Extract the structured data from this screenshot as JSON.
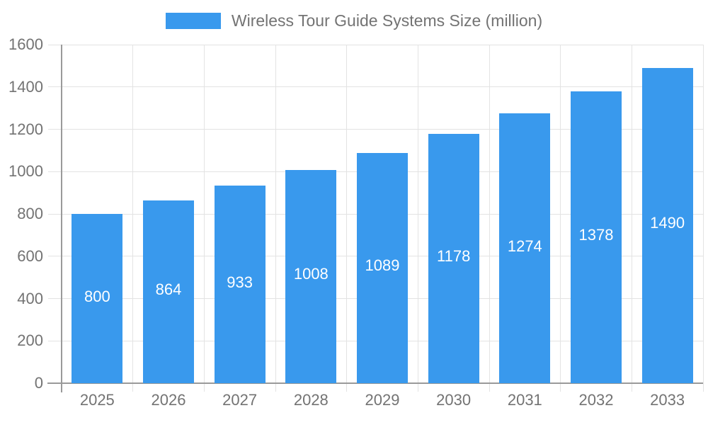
{
  "legend": {
    "items": [
      {
        "label": "Wireless Tour Guide Systems Size (million)",
        "color": "#3999ED"
      }
    ]
  },
  "chart_data": {
    "type": "bar",
    "title": "Wireless Tour Guide Systems Size (million)",
    "categories": [
      "2025",
      "2026",
      "2027",
      "2028",
      "2029",
      "2030",
      "2031",
      "2032",
      "2033"
    ],
    "values": [
      800,
      864,
      933,
      1008,
      1089,
      1178,
      1274,
      1378,
      1490
    ],
    "xlabel": "",
    "ylabel": "",
    "ylim": [
      0,
      1600
    ],
    "ytick_interval": 200,
    "yticks": [
      0,
      200,
      400,
      600,
      800,
      1000,
      1200,
      1400,
      1600
    ],
    "grid": true,
    "legend_position": "top-center",
    "value_label_position": "inside-middle",
    "colors": {
      "bar": "#3999ED",
      "value_label": "#FFFFFF",
      "axis_label": "#737373",
      "grid_line": "#E3E3E3",
      "axis_line": "#9A9A9A",
      "background": "#FFFFFF"
    }
  }
}
